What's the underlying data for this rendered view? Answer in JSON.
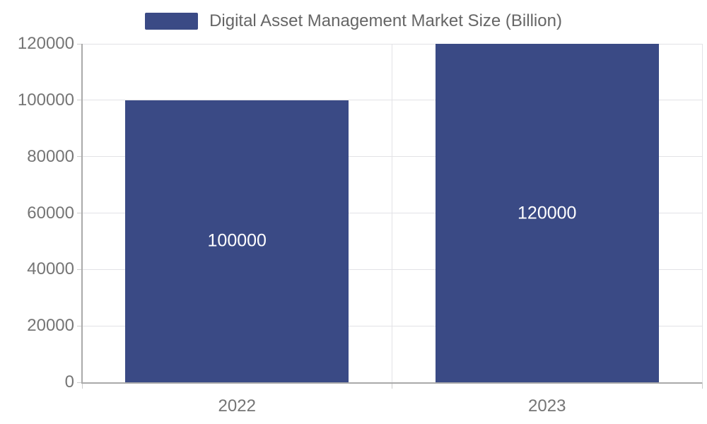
{
  "chart_data": {
    "type": "bar",
    "title": "Digital Asset Management Market Size (Billion)",
    "categories": [
      "2022",
      "2023"
    ],
    "values": [
      100000,
      120000
    ],
    "value_labels": [
      "100000",
      "120000"
    ],
    "xlabel": "",
    "ylabel": "",
    "ylim": [
      0,
      120000
    ],
    "yticks": [
      0,
      20000,
      40000,
      60000,
      80000,
      100000,
      120000
    ],
    "ytick_labels": [
      "0",
      "20000",
      "40000",
      "60000",
      "80000",
      "100000",
      "120000"
    ],
    "grid": true,
    "legend_position": "top",
    "legend_entries": [
      "Digital Asset Management Market Size (Billion)"
    ],
    "colors": {
      "bar": "#3A4A85",
      "bar_value_label": "#ffffff",
      "axis_text": "#757575",
      "legend_text": "#666666",
      "grid_line": "#e2e2e6",
      "axis_line": "#aaaaaa",
      "tick_line": "#cccccc",
      "background": "#ffffff"
    }
  }
}
